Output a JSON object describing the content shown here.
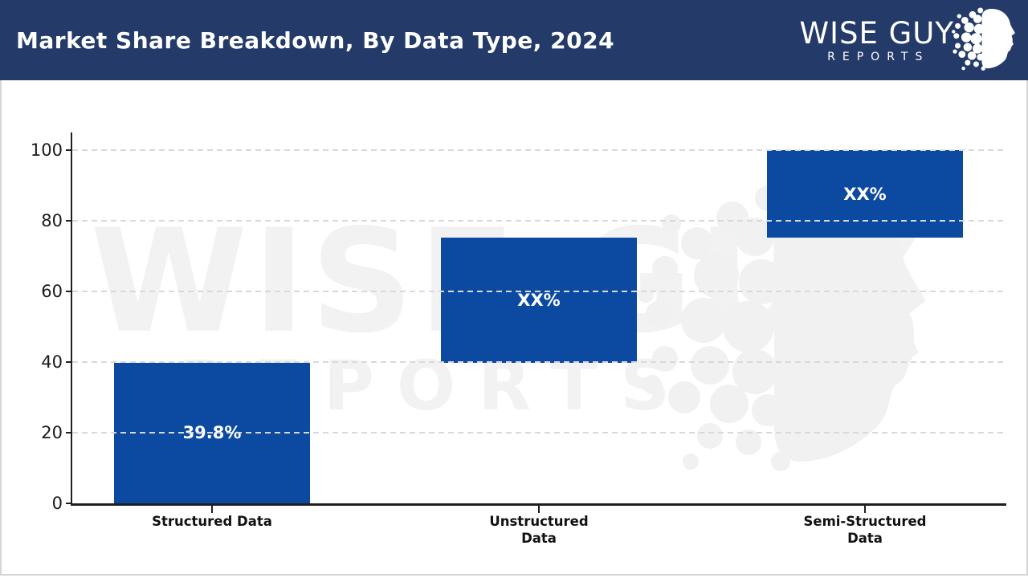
{
  "header": {
    "title": "Market Share Breakdown, By Data Type, 2024",
    "brand": {
      "wordmark": "WISE GUY",
      "subtitle": "REPORTS"
    }
  },
  "watermark": {
    "big": "WISE GUY",
    "small": "REPORTS"
  },
  "chart_data": {
    "type": "bar",
    "variant": "floating-segments",
    "title": "Market Share Breakdown, By Data Type, 2024",
    "categories": [
      "Structured Data",
      "Unstructured Data",
      "Semi-Structured Data"
    ],
    "segments": [
      {
        "category": "Structured Data",
        "start": 0,
        "end": 39.8,
        "label": "39.8%"
      },
      {
        "category": "Unstructured Data",
        "start": 39.8,
        "end": 75.2,
        "label": "XX%"
      },
      {
        "category": "Semi-Structured Data",
        "start": 75.2,
        "end": 100,
        "label": "XX%"
      }
    ],
    "xlabel": "",
    "ylabel": "",
    "ylim": [
      0,
      100
    ],
    "yticks": [
      0,
      20,
      40,
      60,
      80,
      100
    ],
    "grid": "horizontal-dashed",
    "legend": "none",
    "colors": {
      "bar": "#0C4AA1",
      "bar_label": "#FFFFFF",
      "header_bg": "#243B69",
      "axis": "#1F1F1F",
      "gridline": "#D9D9D9",
      "watermark": "#F2F2F2"
    }
  }
}
